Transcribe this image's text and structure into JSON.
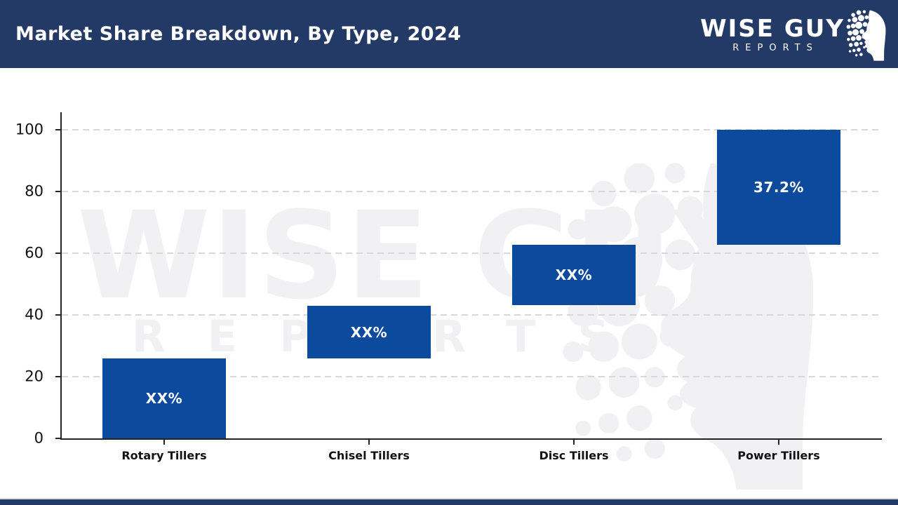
{
  "header": {
    "title": "Market Share Breakdown, By Type, 2024",
    "brand": {
      "line1": "WISE GUY",
      "line2": "REPORTS"
    }
  },
  "watermark": {
    "line1": "WISE GUY",
    "line2": "REPORTS"
  },
  "colors": {
    "header_bg": "#243a66",
    "bar": "#0c4a9e",
    "gridline": "#d8d8d8",
    "watermark": "#f1f1f4",
    "axis": "#242424"
  },
  "chart_data": {
    "type": "bar",
    "subtype": "waterfall-floating-segments",
    "title": "Market Share Breakdown, By Type, 2024",
    "categories": [
      "Rotary Tillers",
      "Chisel Tillers",
      "Disc Tillers",
      "Power Tillers"
    ],
    "segments": [
      {
        "category": "Rotary Tillers",
        "start": 0,
        "end": 25.8,
        "label": "XX%"
      },
      {
        "category": "Chisel Tillers",
        "start": 25.8,
        "end": 42.9,
        "label": "XX%"
      },
      {
        "category": "Disc Tillers",
        "start": 43.2,
        "end": 62.7,
        "label": "XX%"
      },
      {
        "category": "Power Tillers",
        "start": 62.8,
        "end": 100,
        "label": "37.2%",
        "value": 37.2
      }
    ],
    "yticks": [
      0,
      20,
      40,
      60,
      80,
      100
    ],
    "ylim": [
      0,
      100
    ],
    "xlabel": "",
    "ylabel": "",
    "grid": "dashed-horizontal",
    "legend": "none"
  }
}
